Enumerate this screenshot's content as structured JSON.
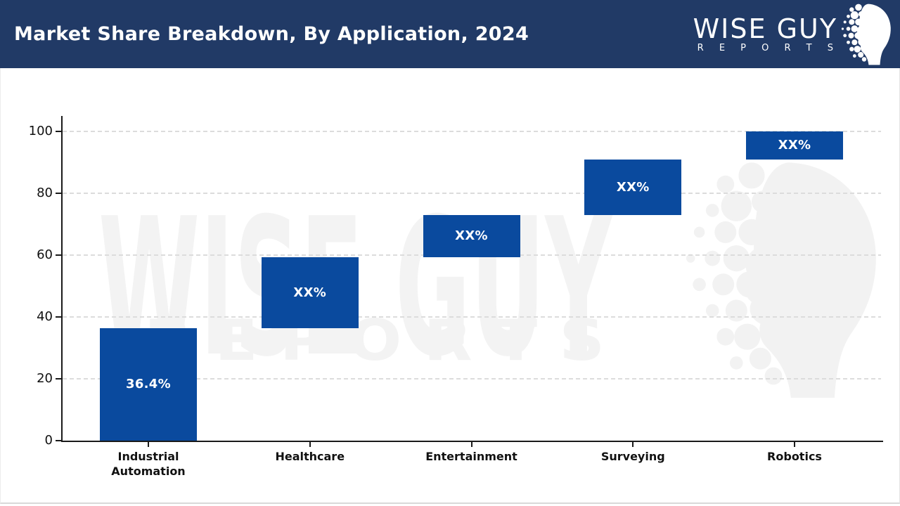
{
  "header": {
    "title": "Market Share Breakdown, By Application, 2024",
    "bg_color": "#213A66",
    "logo": {
      "line1": "WISE GUY",
      "line2": "R E P O R T S"
    }
  },
  "watermark": {
    "line1": "WISE GUY",
    "line2": "R E P O R T S"
  },
  "chart_data": {
    "type": "bar",
    "subtype": "waterfall-floating-bars",
    "title": "Market Share Breakdown, By Application, 2024",
    "xlabel": "",
    "ylabel": "",
    "ylim": [
      0,
      100
    ],
    "yticks": [
      0,
      20,
      40,
      60,
      80,
      100
    ],
    "grid": "horizontal-dashed",
    "bar_color": "#0A4A9E",
    "label_color": "#ffffff",
    "categories": [
      "Industrial Automation",
      "Healthcare",
      "Entertainment",
      "Surveying",
      "Robotics"
    ],
    "segments": [
      {
        "category": "Industrial Automation",
        "start": 0,
        "end": 36.4,
        "label": "36.4%"
      },
      {
        "category": "Healthcare",
        "start": 36.4,
        "end": 59.3,
        "label": "XX%"
      },
      {
        "category": "Entertainment",
        "start": 59.3,
        "end": 73.0,
        "label": "XX%"
      },
      {
        "category": "Surveying",
        "start": 73.0,
        "end": 91.0,
        "label": "XX%"
      },
      {
        "category": "Robotics",
        "start": 91.0,
        "end": 100,
        "label": "XX%"
      }
    ]
  }
}
